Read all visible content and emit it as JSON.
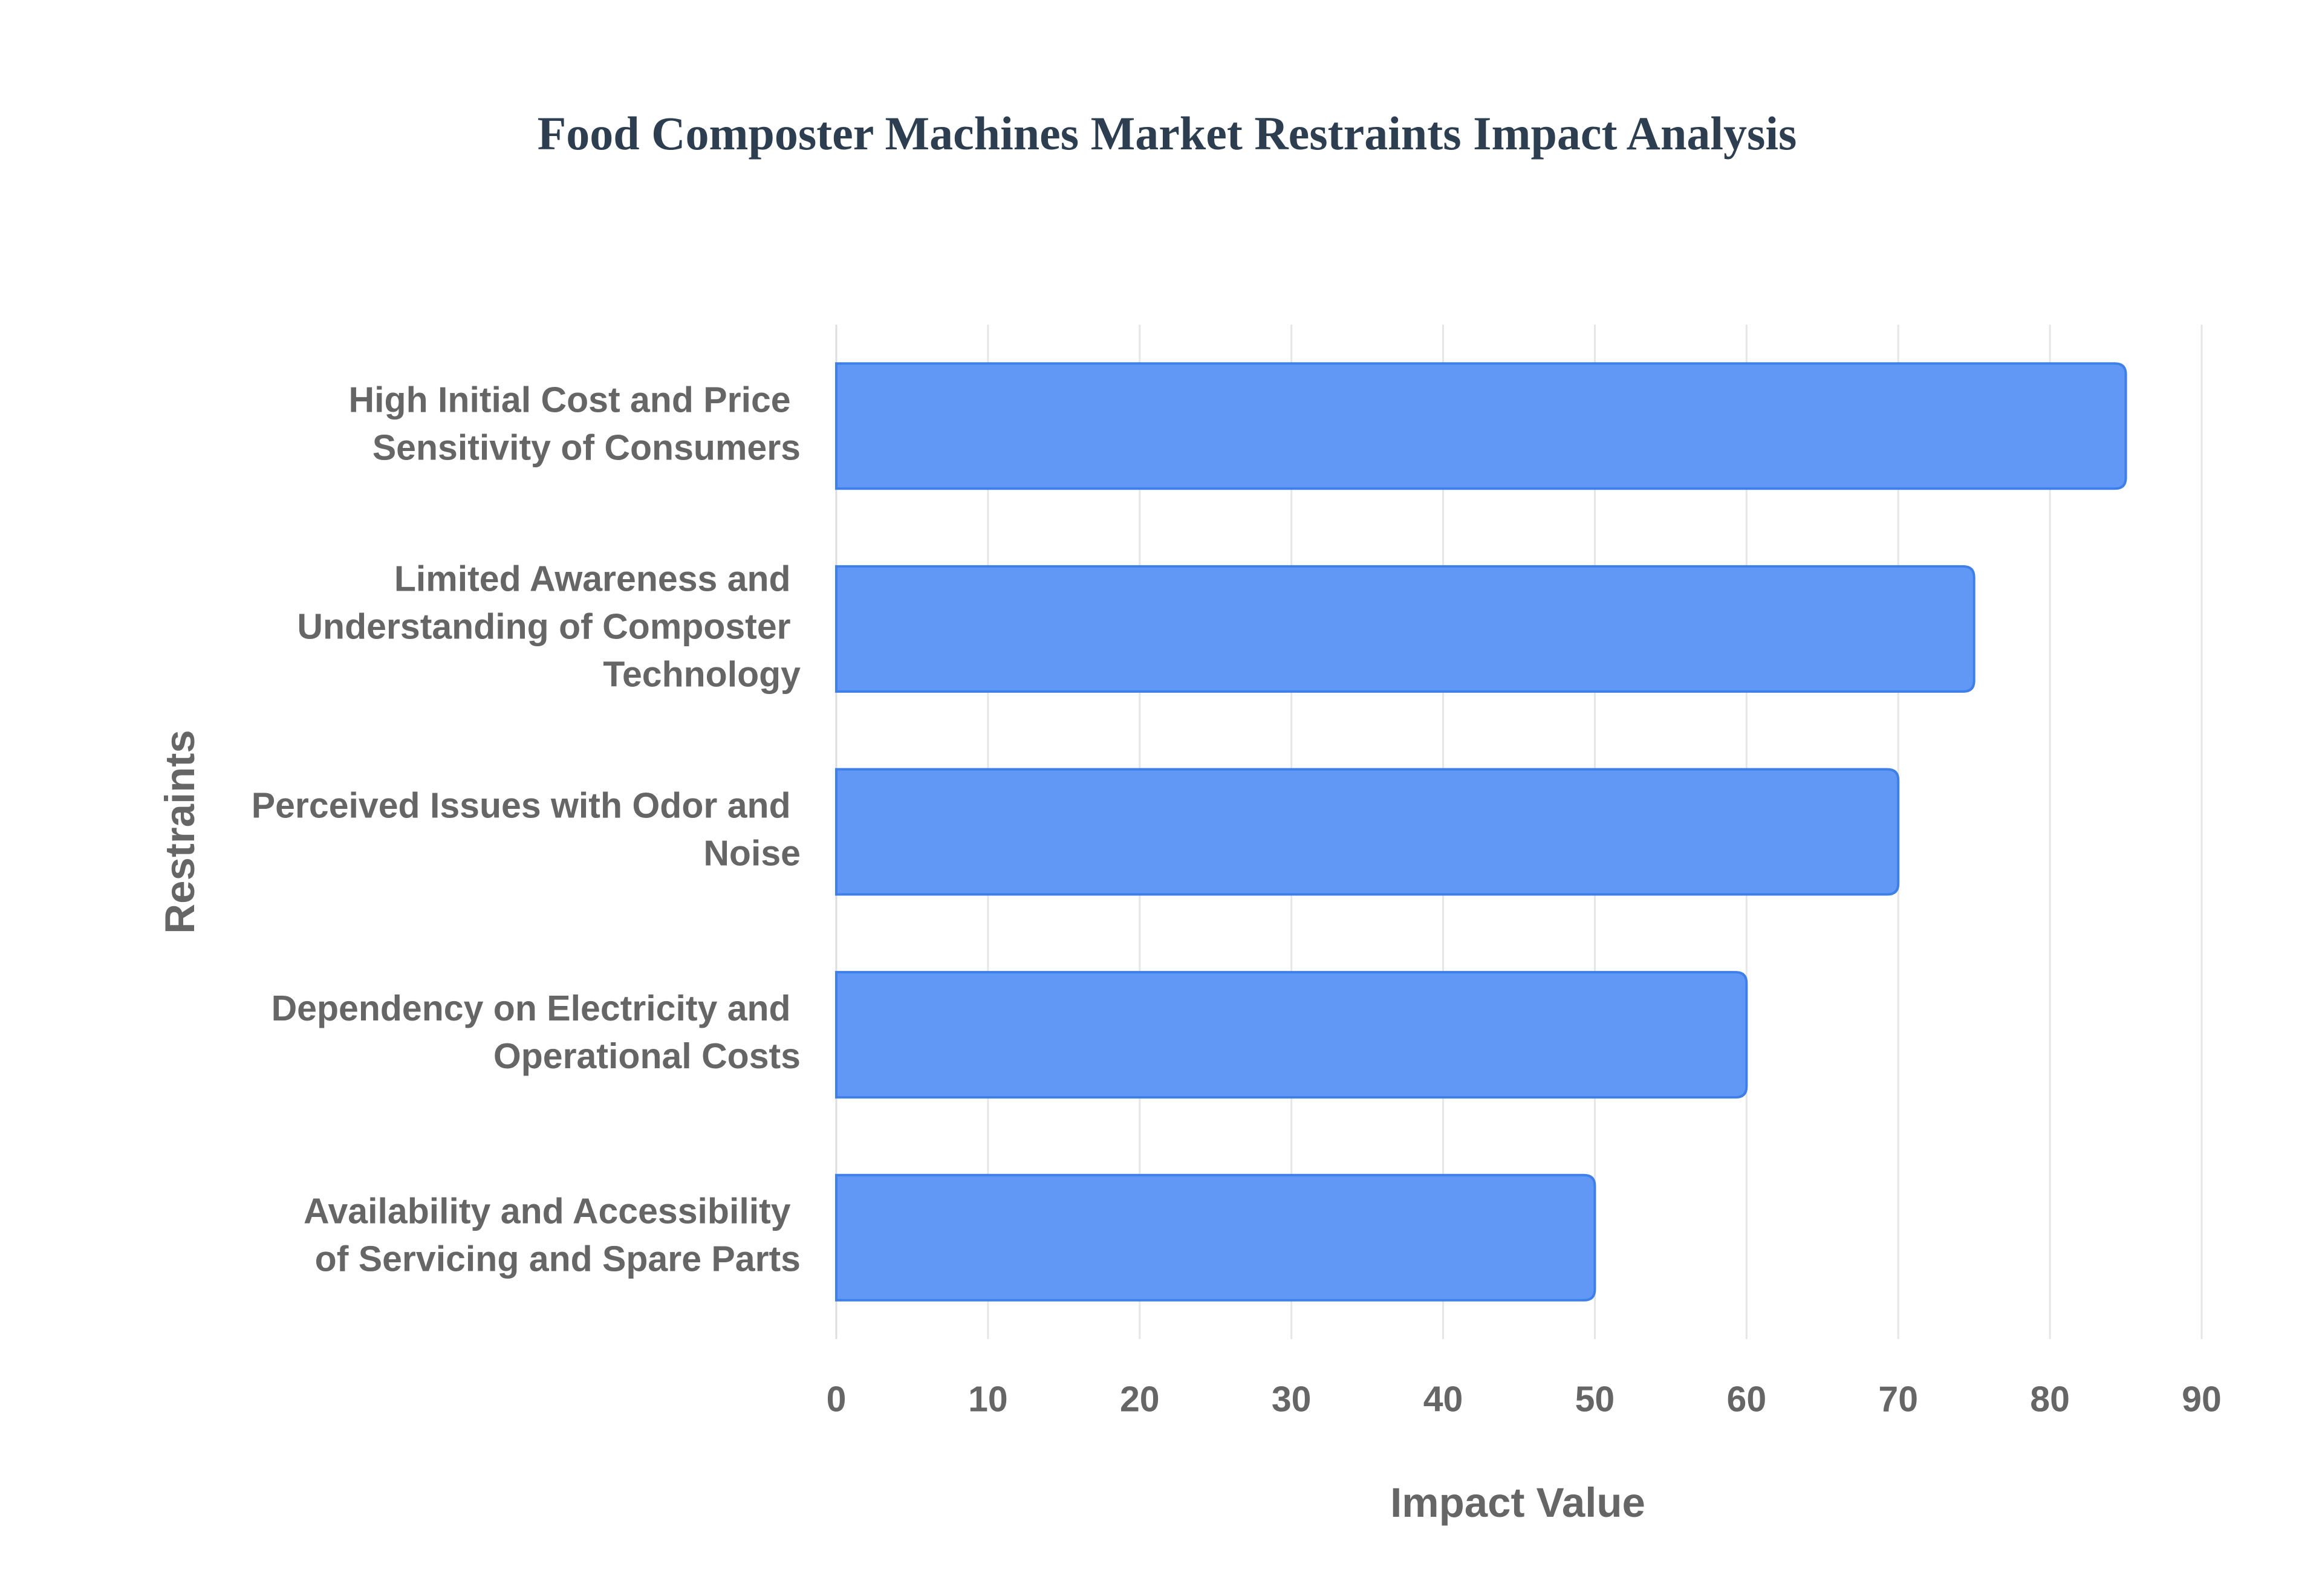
{
  "chart_data": {
    "type": "bar",
    "orientation": "horizontal",
    "title": "Food Composter Machines Market Restraints Impact Analysis",
    "x_label": "Impact Value",
    "y_label": "Restraints",
    "categories": [
      "High Initial Cost and Price Sensitivity of Consumers",
      "Limited Awareness and Understanding of Composter Technology",
      "Perceived Issues with Odor and Noise",
      "Dependency on Electricity and Operational Costs",
      "Availability and Accessibility of Servicing and Spare Parts"
    ],
    "values": [
      85,
      75,
      70,
      60,
      50
    ],
    "color": "#6198f5",
    "xlim": [
      0,
      90
    ],
    "xticks": [
      0,
      10,
      20,
      30,
      40,
      50,
      60,
      70,
      80,
      90
    ],
    "grid": true
  }
}
